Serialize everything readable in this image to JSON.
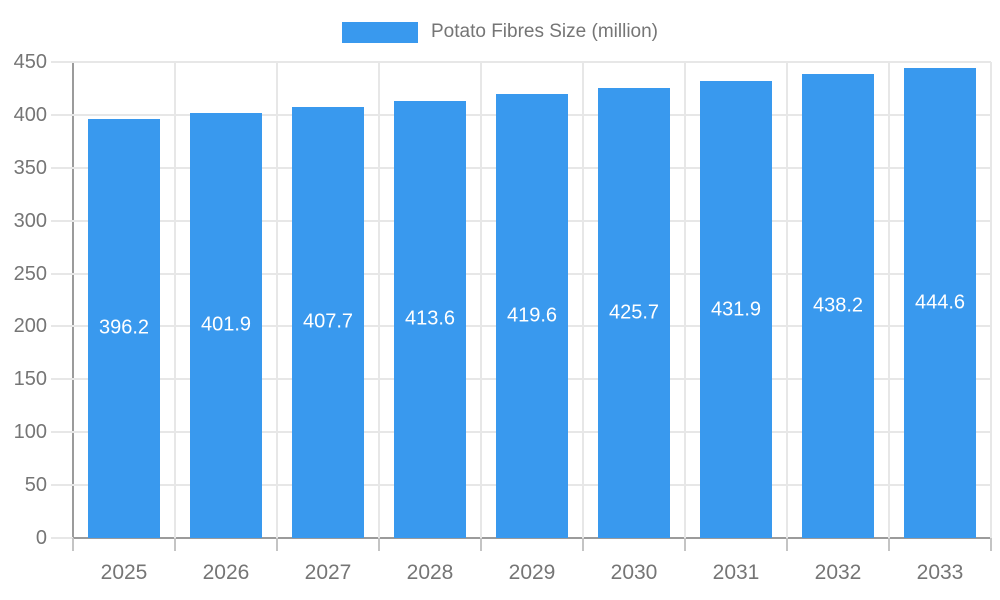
{
  "chart_data": {
    "type": "bar",
    "title": "",
    "categories": [
      "2025",
      "2026",
      "2027",
      "2028",
      "2029",
      "2030",
      "2031",
      "2032",
      "2033"
    ],
    "series": [
      {
        "name": "Potato Fibres Size (million)",
        "values": [
          396.2,
          401.9,
          407.7,
          413.6,
          419.6,
          425.7,
          431.9,
          438.2,
          444.6
        ]
      }
    ],
    "xlabel": "",
    "ylabel": "",
    "ylim": [
      0,
      450
    ],
    "yticks": [
      0,
      50,
      100,
      150,
      200,
      250,
      300,
      350,
      400,
      450
    ],
    "grid": "on",
    "legend_position": "top",
    "value_labels": "centered-in-bar",
    "colors": {
      "bar": "#3999ee",
      "bar_value_label": "#ffffff",
      "axis_line": "#9b9b9b",
      "gridline": "#e7e7e7",
      "tick_mark": "#c4c4c4",
      "tick_label": "#757575",
      "legend_text": "#757575",
      "background": "#ffffff"
    }
  }
}
